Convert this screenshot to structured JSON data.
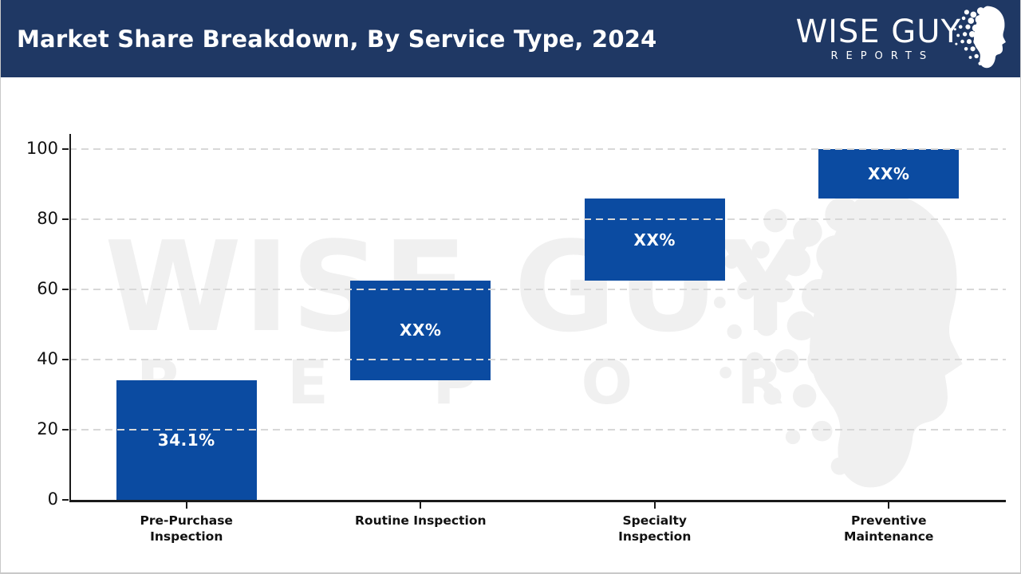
{
  "header": {
    "title": "Market Share Breakdown, By Service Type, 2024",
    "logo": {
      "name": "WISE GUY",
      "sub": "REPORTS"
    }
  },
  "watermark": {
    "line1": "WISE GUY",
    "line2": "R E P O R T S"
  },
  "chart_data": {
    "type": "bar",
    "subtype": "floating-waterfall",
    "title": "Market Share Breakdown, By Service Type, 2024",
    "categories": [
      "Pre-Purchase Inspection",
      "Routine Inspection",
      "Specialty Inspection",
      "Preventive Maintenance"
    ],
    "category_lines": [
      [
        "Pre-Purchase",
        "Inspection"
      ],
      [
        "Routine Inspection"
      ],
      [
        "Specialty",
        "Inspection"
      ],
      [
        "Preventive",
        "Maintenance"
      ]
    ],
    "segments": [
      {
        "category": "Pre-Purchase Inspection",
        "start": 0,
        "end": 34.1,
        "label": "34.1%"
      },
      {
        "category": "Routine Inspection",
        "start": 34.1,
        "end": 62.5,
        "label": "XX%"
      },
      {
        "category": "Specialty Inspection",
        "start": 62.5,
        "end": 85.9,
        "label": "XX%"
      },
      {
        "category": "Preventive Maintenance",
        "start": 85.9,
        "end": 100,
        "label": "XX%"
      }
    ],
    "xlabel": "",
    "ylabel": "",
    "ylim": [
      0,
      100
    ],
    "yticks": [
      0,
      20,
      40,
      60,
      80,
      100
    ],
    "grid": "horizontal dashed",
    "legend": "none",
    "bar_color": "#0b4ba1",
    "bar_label_color": "#ffffff"
  },
  "colors": {
    "header_bg": "#1f3864",
    "bar": "#0b4ba1",
    "grid": "#d8d8d8",
    "axis": "#1a1a1a",
    "watermark": "#f0f0f0",
    "page_border": "#c9c9c9"
  }
}
